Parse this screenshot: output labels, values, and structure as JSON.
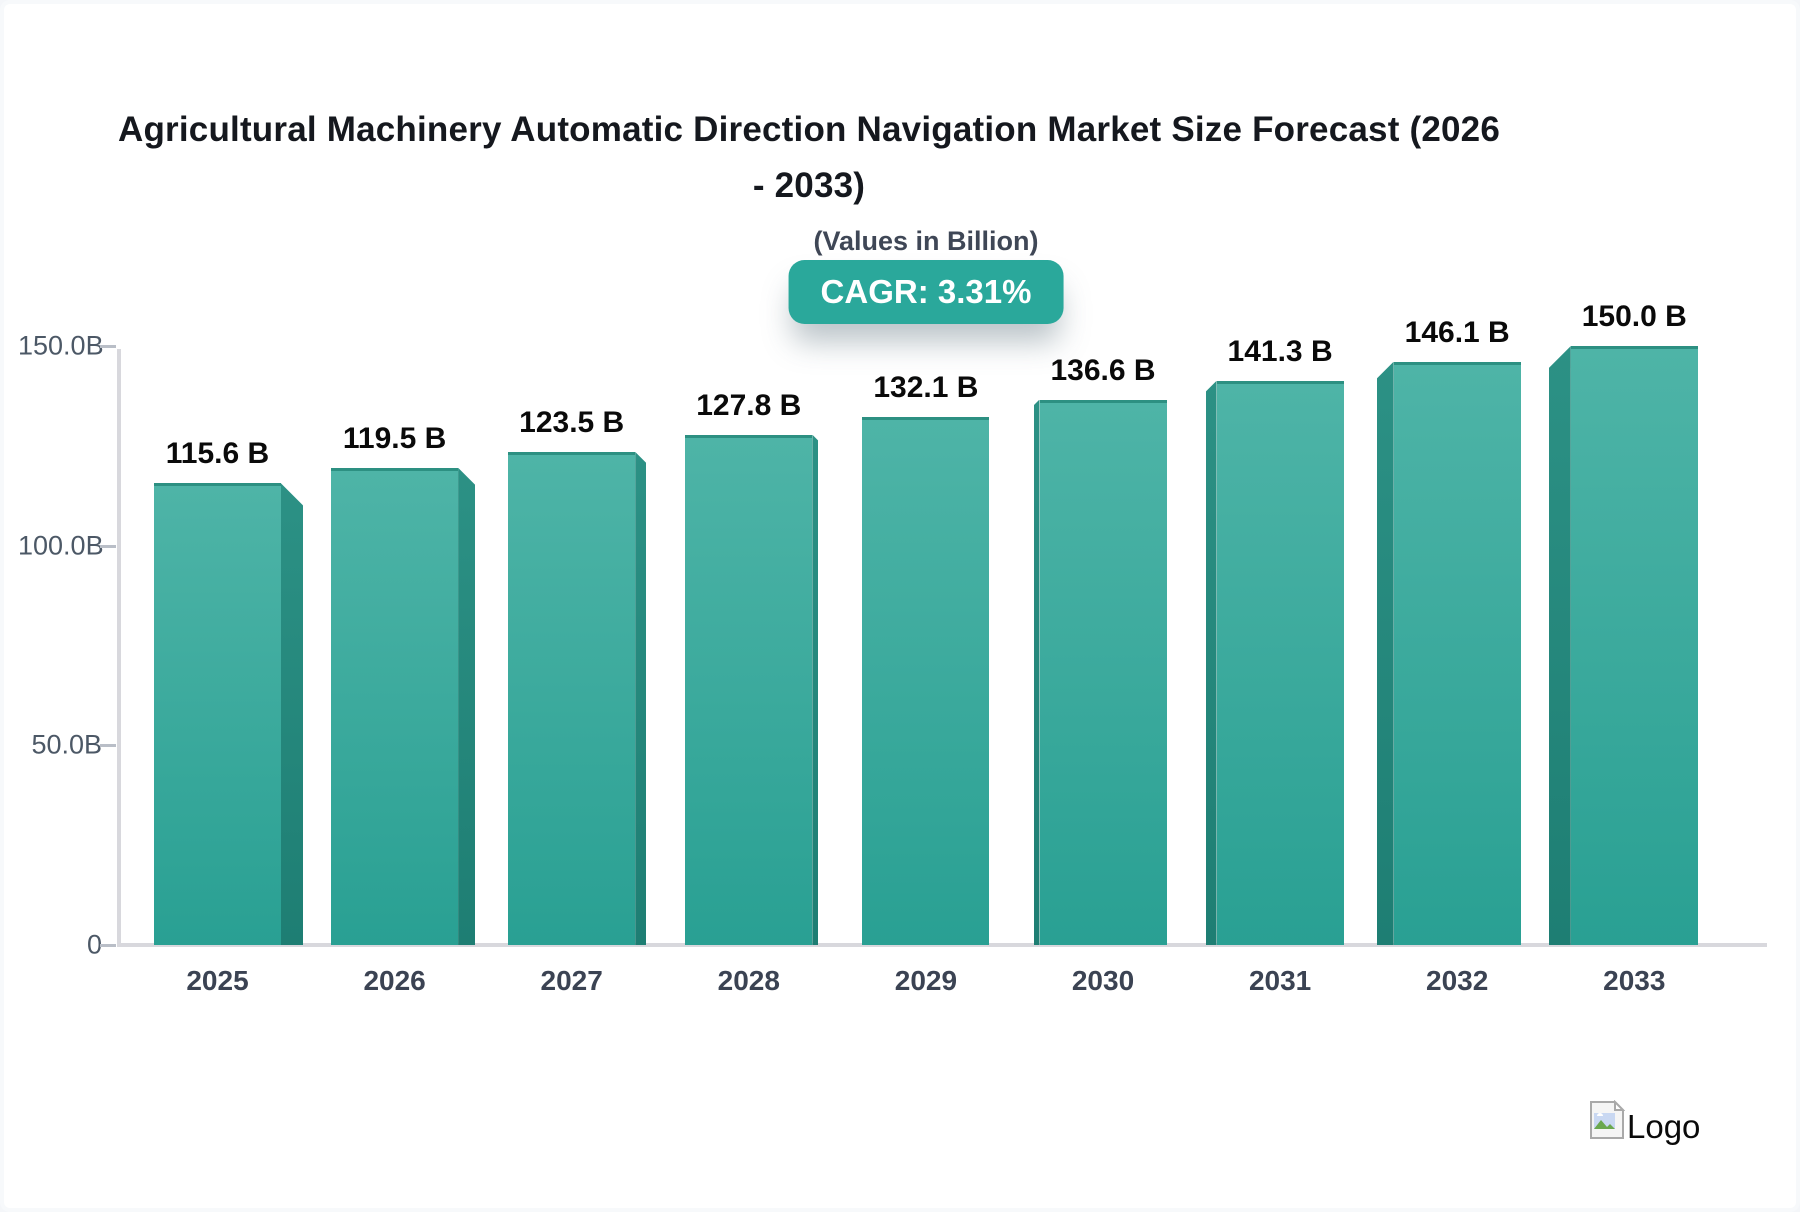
{
  "header": {
    "title_line1": "Agricultural Machinery Automatic Direction Navigation Market Size Forecast (2026",
    "title_line2": "- 2033)",
    "subtitle": "(Values in Billion)",
    "cagr_badge": "CAGR: 3.31%"
  },
  "footer": {
    "logo_alt_text": "Logo"
  },
  "colors": {
    "bar_front_top": "#4eb4a7",
    "bar_front_bottom": "#29a093",
    "bar_top_edge": "#2d9082",
    "bar_side_top": "#2c9185",
    "bar_side_bottom": "#1e7e73",
    "badge_bg": "#2aa89b",
    "badge_text": "#ffffff",
    "axis_line": "#d8d8dd",
    "tick_mark": "#b9bec7",
    "y_label": "#4c5866",
    "x_label": "#3b4353",
    "value_label": "#0a0a0a",
    "title": "#15181e",
    "subtitle": "#3f4756",
    "background": "#ffffff"
  },
  "chart_data": {
    "type": "bar",
    "title": "Agricultural Machinery Automatic Direction Navigation Market Size Forecast (2026 - 2033)",
    "subtitle": "(Values in Billion)",
    "annotation": "CAGR: 3.31%",
    "categories": [
      "2025",
      "2026",
      "2027",
      "2028",
      "2029",
      "2030",
      "2031",
      "2032",
      "2033"
    ],
    "values": [
      115.6,
      119.5,
      123.5,
      127.8,
      132.1,
      136.6,
      141.3,
      146.1,
      150.0
    ],
    "value_labels": [
      "115.6 B",
      "119.5 B",
      "123.5 B",
      "127.8 B",
      "132.1 B",
      "136.6 B",
      "141.3 B",
      "146.1 B",
      "150.0 B"
    ],
    "unit": "Billion",
    "xlabel": "",
    "ylabel": "",
    "ylim": [
      0,
      150
    ],
    "y_ticks": [
      {
        "value": 0,
        "label": "0"
      },
      {
        "value": 50,
        "label": "50.0B"
      },
      {
        "value": 100,
        "label": "100.0B"
      },
      {
        "value": 150,
        "label": "150.0B"
      }
    ],
    "grid": false,
    "legend": false,
    "bar_style": "3d-perspective-teal"
  }
}
